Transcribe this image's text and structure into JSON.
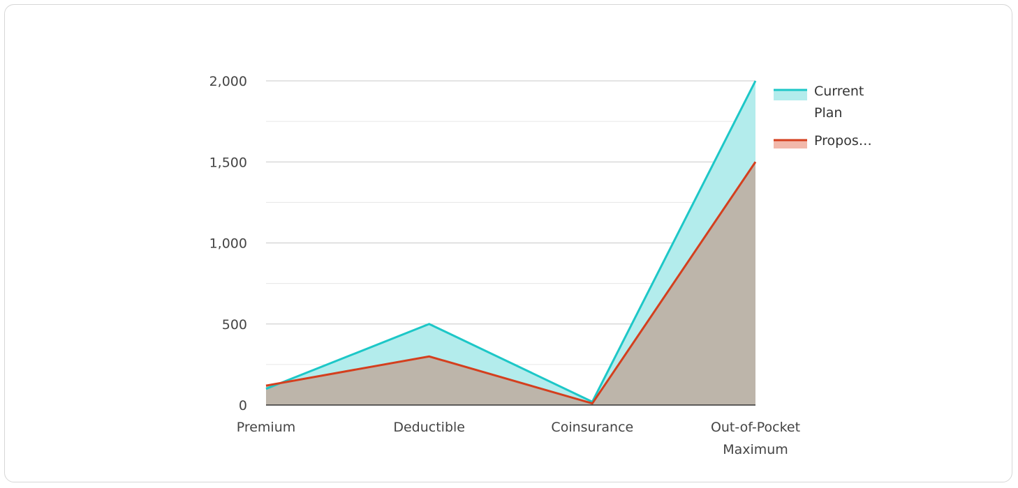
{
  "chart_data": {
    "type": "area",
    "categories": [
      "Premium",
      "Deductible",
      "Coinsurance",
      "Out-of-Pocket\nMaximum"
    ],
    "series": [
      {
        "name": "Current Plan",
        "values": [
          100,
          500,
          20,
          2000
        ],
        "color": "#1dc7c7",
        "fill": "#b3ecec"
      },
      {
        "name": "Proposed",
        "legend_display": "Propos…",
        "values": [
          120,
          300,
          10,
          1500
        ],
        "color": "#d43f1e",
        "fill": "#bdb5aa"
      }
    ],
    "ylim": [
      0,
      2000
    ],
    "yticks": [
      0,
      500,
      1000,
      1500,
      2000
    ],
    "ytick_labels": [
      "0",
      "500",
      "1,000",
      "1,500",
      "2,000"
    ],
    "grid": true,
    "legend_position": "right",
    "title": "",
    "xlabel": "",
    "ylabel": ""
  }
}
